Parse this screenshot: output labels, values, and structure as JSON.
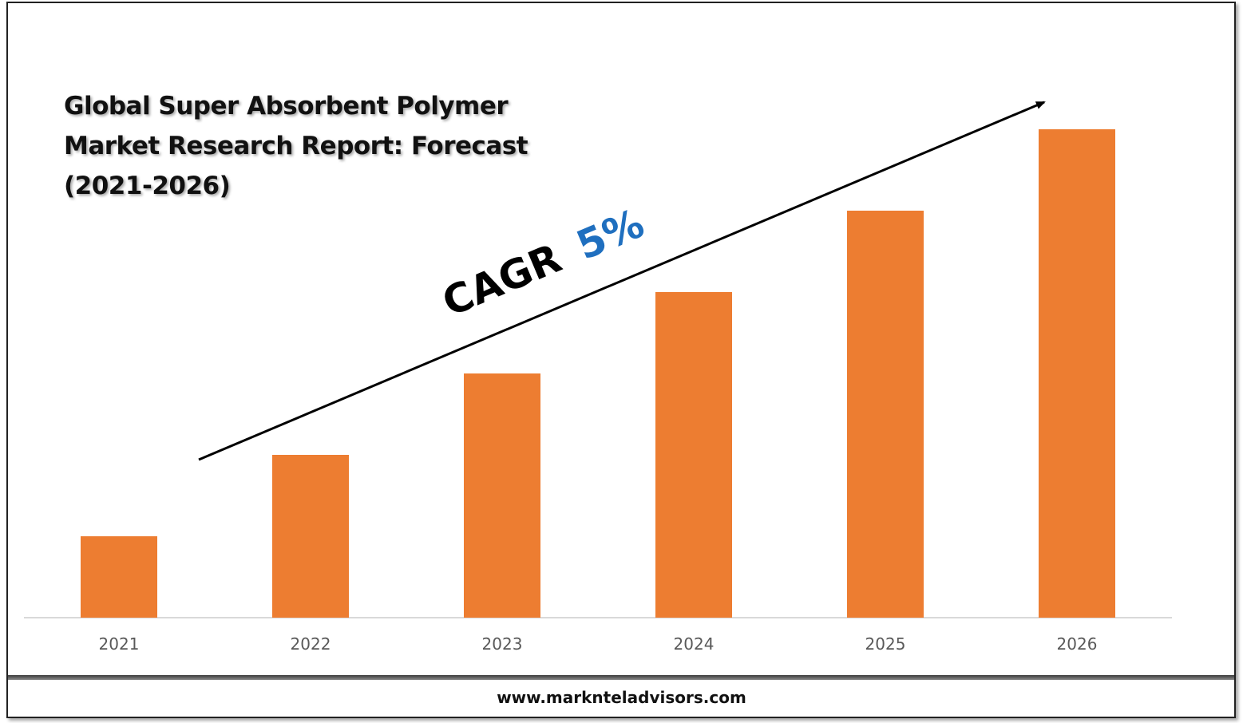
{
  "title_lines": [
    "Global Super Absorbent Polymer",
    "Market Research Report: Forecast",
    "(2021-2026)"
  ],
  "cagr": {
    "label": "CAGR",
    "value": "5%",
    "value_color": "#1f6fbf"
  },
  "footer": {
    "website": "www.marknteladvisors.com"
  },
  "colors": {
    "bar": "#ed7d31",
    "axis": "#d9d9d9",
    "tick_label": "#595959",
    "arrow": "#000000"
  },
  "chart_data": {
    "type": "bar",
    "title": "Global Super Absorbent Polymer Market Research Report: Forecast (2021-2026)",
    "categories": [
      "2021",
      "2022",
      "2023",
      "2024",
      "2025",
      "2026"
    ],
    "values": [
      1,
      2,
      3,
      4,
      5,
      6
    ],
    "value_note": "relative bar heights; no y-axis values printed",
    "ylim": [
      0,
      6
    ],
    "grid": false,
    "legend": "none",
    "annotation": "CAGR 5%"
  }
}
